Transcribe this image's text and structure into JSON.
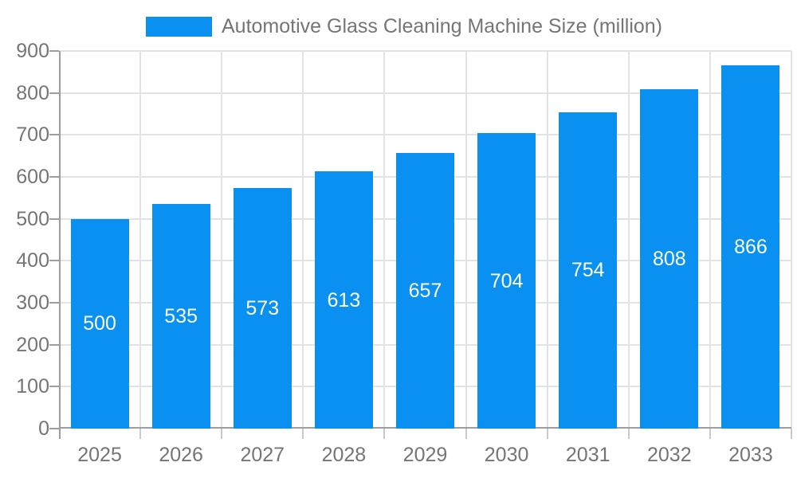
{
  "chart_data": {
    "type": "bar",
    "title": "Automotive Glass Cleaning Machine Size (million)",
    "categories": [
      "2025",
      "2026",
      "2027",
      "2028",
      "2029",
      "2030",
      "2031",
      "2032",
      "2033"
    ],
    "values": [
      500,
      535,
      573,
      613,
      657,
      704,
      754,
      808,
      866
    ],
    "xlabel": "",
    "ylabel": "",
    "ylim": [
      0,
      900
    ],
    "y_ticks": [
      0,
      100,
      200,
      300,
      400,
      500,
      600,
      700,
      800,
      900
    ],
    "grid": true,
    "legend_position": "top",
    "colors": {
      "bar": "#0a90f0",
      "bar_value_text": "#ffffff",
      "axis_text": "#757575",
      "axis_line": "#9e9e9e",
      "gridline": "#e3e3e3",
      "minor_tick": "#c9c9c9",
      "background": "#ffffff"
    }
  }
}
